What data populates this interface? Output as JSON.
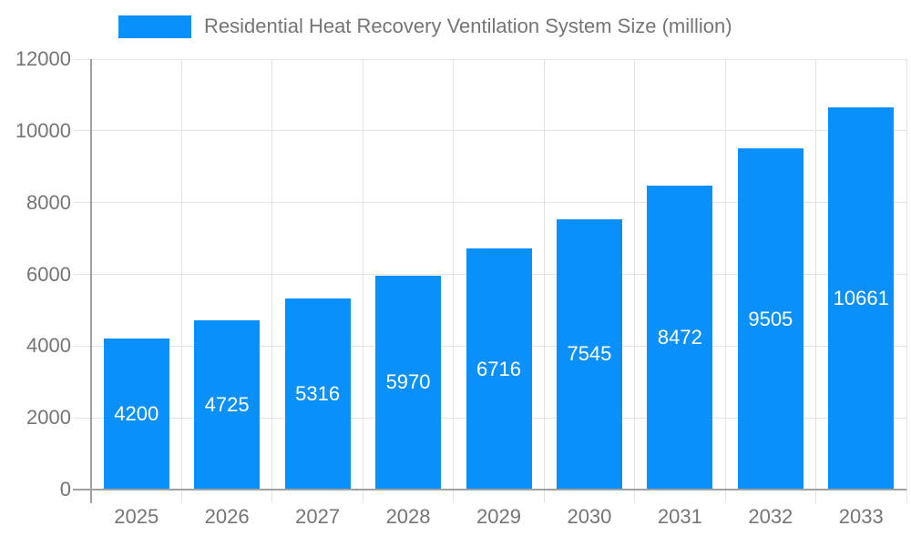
{
  "chart_data": {
    "type": "bar",
    "title": "Residential Heat Recovery Ventilation System Size (million)",
    "legend": {
      "label": "Residential Heat Recovery Ventilation System Size (million)",
      "position": "top"
    },
    "categories": [
      "2025",
      "2026",
      "2027",
      "2028",
      "2029",
      "2030",
      "2031",
      "2032",
      "2033"
    ],
    "values": [
      4200,
      4725,
      5316,
      5970,
      6716,
      7545,
      8472,
      9505,
      10661
    ],
    "xlabel": "",
    "ylabel": "",
    "ylim": [
      0,
      12000
    ],
    "yticks": [
      0,
      2000,
      4000,
      6000,
      8000,
      10000,
      12000
    ],
    "grid": true,
    "bar_labels_inside": true,
    "colors": {
      "bar": "#0b90f9",
      "bar_label": "#ffffff",
      "grid": "#e3e3e3",
      "axis": "#a0a0a0",
      "tick_label": "#757575",
      "background": "#ffffff"
    }
  }
}
